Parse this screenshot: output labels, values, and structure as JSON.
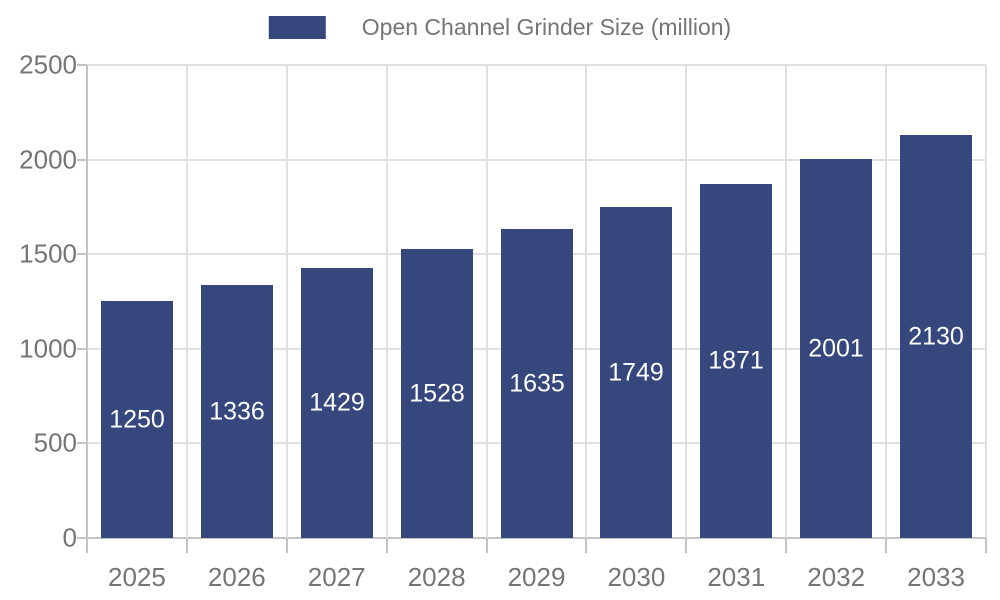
{
  "legend": {
    "label": "Open Channel Grinder Size (million)"
  },
  "colors": {
    "bar": "#36477d",
    "bar_label_text": "#ffffff",
    "axis_text": "#757575",
    "gridline": "#e0e0e0",
    "axis_line": "#c3c3c3",
    "background": "#ffffff"
  },
  "chart_data": {
    "type": "bar",
    "title": "",
    "legend_entries": [
      "Open Channel Grinder Size (million)"
    ],
    "legend_position": "top",
    "categories": [
      "2025",
      "2026",
      "2027",
      "2028",
      "2029",
      "2030",
      "2031",
      "2032",
      "2033"
    ],
    "series": [
      {
        "name": "Open Channel Grinder Size (million)",
        "values": [
          1250,
          1336,
          1429,
          1528,
          1635,
          1749,
          1871,
          2001,
          2130
        ]
      }
    ],
    "bar_labels": [
      1250,
      1336,
      1429,
      1528,
      1635,
      1749,
      1871,
      2001,
      2130
    ],
    "xlabel": "",
    "ylabel": "",
    "ylim": [
      0,
      2500
    ],
    "yticks": [
      0,
      500,
      1000,
      1500,
      2000,
      2500
    ],
    "grid": true
  }
}
